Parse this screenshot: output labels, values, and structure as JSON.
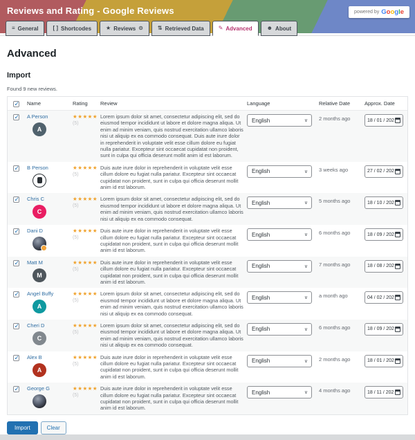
{
  "header": {
    "title": "Reviews and Rating - Google Reviews",
    "powered_prefix": "powered by",
    "google_letters": [
      {
        "c": "G",
        "color": "#4285F4"
      },
      {
        "c": "o",
        "color": "#EA4335"
      },
      {
        "c": "o",
        "color": "#FBBC05"
      },
      {
        "c": "g",
        "color": "#4285F4"
      },
      {
        "c": "l",
        "color": "#34A853"
      },
      {
        "c": "e",
        "color": "#EA4335"
      }
    ],
    "stripe_colors": [
      "#b15b5f",
      "#c5a03a",
      "#689b72",
      "#6e87c7"
    ]
  },
  "tabs": [
    {
      "label": "General",
      "icon": "settings-sliders-icon",
      "glyph": "≡",
      "active": false
    },
    {
      "label": "Shortcodes",
      "icon": "brackets-icon",
      "glyph": "[ ]",
      "active": false
    },
    {
      "label": "Reviews",
      "icon": "star-icon",
      "glyph": "★",
      "badge_icon": "clock-badge-icon",
      "badge_glyph": "⊙",
      "active": false
    },
    {
      "label": "Retrieved Data",
      "icon": "arrows-up-down-icon",
      "glyph": "⇅",
      "active": false
    },
    {
      "label": "Advanced",
      "icon": "paintbrush-icon",
      "glyph": "✎",
      "active": true
    },
    {
      "label": "About",
      "icon": "about-icon",
      "glyph": "☻",
      "active": false
    }
  ],
  "page": {
    "title": "Advanced",
    "import_heading": "Import",
    "found_text": "Found 9 new reviews."
  },
  "table": {
    "columns": [
      "Name",
      "Rating",
      "Review",
      "Language",
      "Relative Date",
      "Approx. Date"
    ],
    "rows": [
      {
        "name": "A Person",
        "avatar": {
          "type": "initial",
          "letter": "A",
          "bg": "#50626d"
        },
        "rating": 5,
        "rating_label": "(5)",
        "review": "Lorem ipsum dolor sit amet, consectetur adipiscing elit, sed do eiusmod tempor incididunt ut labore et dolore magna aliqua. Ut enim ad minim veniam, quis nostrud exercitation ullamco laboris nisi ut aliquip ex ea commodo consequat. Duis aute irure dolor in reprehenderit in voluptate velit esse cillum dolore eu fugiat nulla pariatur. Excepteur sint occaecat cupidatat non proident, sunt in culpa qui officia deserunt mollit anim id est laborum.",
        "language": "English",
        "relative_date": "2 months ago",
        "date": "18 / 01 / 202"
      },
      {
        "name": "B Person",
        "avatar": {
          "type": "robot"
        },
        "rating": 5,
        "rating_label": "(5)",
        "review": "Duis aute irure dolor in reprehenderit in voluptate velit esse cillum dolore eu fugiat nulla pariatur. Excepteur sint occaecat cupidatat non proident, sunt in culpa qui officia deserunt mollit anim id est laborum.",
        "language": "English",
        "relative_date": "3 weeks ago",
        "date": "27 / 02 / 202"
      },
      {
        "name": "Chris C",
        "avatar": {
          "type": "initial",
          "letter": "C",
          "bg": "#e91e63"
        },
        "rating": 5,
        "rating_label": "(5)",
        "review": "Lorem ipsum dolor sit amet, consectetur adipiscing elit, sed do eiusmod tempor incididunt ut labore et dolore magna aliqua. Ut enim ad minim veniam, quis nostrud exercitation ullamco laboris nisi ut aliquip ex ea commodo consequat.",
        "language": "English",
        "relative_date": "5 months ago",
        "date": "18 / 10 / 202"
      },
      {
        "name": "Dani D",
        "avatar": {
          "type": "photo",
          "badged": true
        },
        "rating": 5,
        "rating_label": "(5)",
        "review": "Duis aute irure dolor in reprehenderit in voluptate velit esse cillum dolore eu fugiat nulla pariatur. Excepteur sint occaecat cupidatat non proident, sunt in culpa qui officia deserunt mollit anim id est laborum.",
        "language": "English",
        "relative_date": "6 months ago",
        "date": "18 / 09 / 202"
      },
      {
        "name": "Matt M",
        "avatar": {
          "type": "initial",
          "letter": "M",
          "bg": "#4e565c"
        },
        "rating": 5,
        "rating_label": "(5)",
        "review": "Duis aute irure dolor in reprehenderit in voluptate velit esse cillum dolore eu fugiat nulla pariatur. Excepteur sint occaecat cupidatat non proident, sunt in culpa qui officia deserunt mollit anim id est laborum.",
        "language": "English",
        "relative_date": "7 months ago",
        "date": "18 / 08 / 202"
      },
      {
        "name": "Angel Buffy",
        "avatar": {
          "type": "initial",
          "letter": "A",
          "bg": "#0e99a0"
        },
        "rating": 5,
        "rating_label": "(5)",
        "review": "Lorem ipsum dolor sit amet, consectetur adipiscing elit, sed do eiusmod tempor incididunt ut labore et dolore magna aliqua. Ut enim ad minim veniam, quis nostrud exercitation ullamco laboris nisi ut aliquip ex ea commodo consequat.",
        "language": "English",
        "relative_date": "a month ago",
        "date": "04 / 02 / 202"
      },
      {
        "name": "Cheri D",
        "avatar": {
          "type": "initial",
          "letter": "C",
          "bg": "#81888e"
        },
        "rating": 5,
        "rating_label": "(5)",
        "review": "Lorem ipsum dolor sit amet, consectetur adipiscing elit, sed do eiusmod tempor incididunt ut labore et dolore magna aliqua. Ut enim ad minim veniam, quis nostrud exercitation ullamco laboris nisi ut aliquip ex ea commodo consequat.",
        "language": "English",
        "relative_date": "6 months ago",
        "date": "18 / 09 / 202"
      },
      {
        "name": "Alex B",
        "avatar": {
          "type": "initial",
          "letter": "A",
          "bg": "#b2321f"
        },
        "rating": 5,
        "rating_label": "(5)",
        "review": "Duis aute irure dolor in reprehenderit in voluptate velit esse cillum dolore eu fugiat nulla pariatur. Excepteur sint occaecat cupidatat non proident, sunt in culpa qui officia deserunt mollit anim id est laborum.",
        "language": "English",
        "relative_date": "2 months ago",
        "date": "18 / 01 / 202"
      },
      {
        "name": "George G",
        "avatar": {
          "type": "photo"
        },
        "rating": 5,
        "rating_label": "(5)",
        "review": "Duis aute irure dolor in reprehenderit in voluptate velit esse cillum dolore eu fugiat nulla pariatur. Excepteur sint occaecat cupidatat non proident, sunt in culpa qui officia deserunt mollit anim id est laborum.",
        "language": "English",
        "relative_date": "4 months ago",
        "date": "18 / 11 / 202"
      }
    ]
  },
  "actions": {
    "import_label": "Import",
    "clear_label": "Clear"
  },
  "colors": {
    "accent_blue": "#2271b1",
    "link_blue": "#2d6ca2",
    "star_orange": "#f0a12a",
    "active_tab_pink": "#b5326e"
  }
}
